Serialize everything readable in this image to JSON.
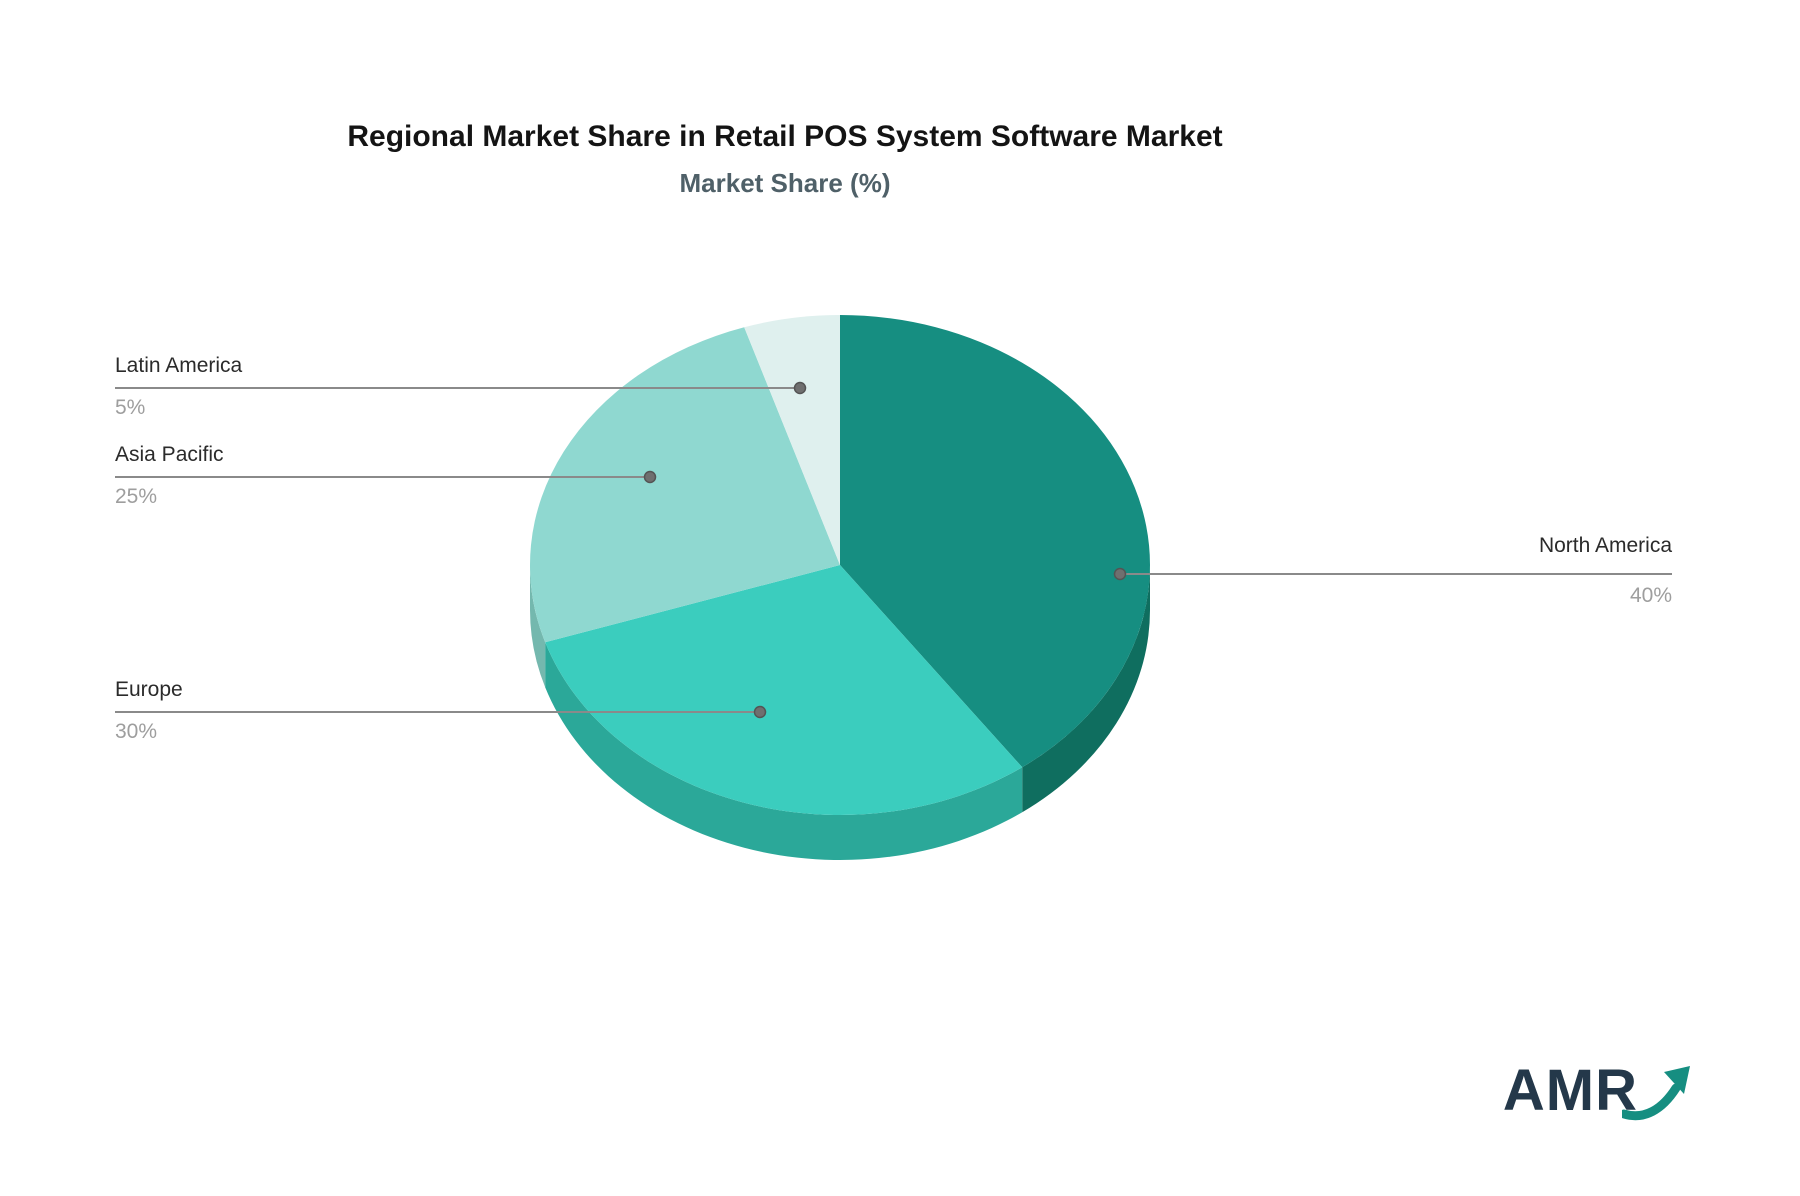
{
  "title": "Regional Market Share in Retail POS System Software Market",
  "subtitle": "Market Share (%)",
  "logo": {
    "text": "AMR",
    "arrow_color": "#168E81",
    "text_color": "#24384a"
  },
  "chart_data": {
    "type": "pie",
    "style": "3d",
    "title": "Regional Market Share in Retail POS System Software Market",
    "subtitle": "Market Share (%)",
    "unit": "%",
    "direction": "clockwise",
    "start_angle_deg": 0,
    "slices": [
      {
        "label": "North America",
        "value": 40,
        "display": "40%",
        "color": "#168E81",
        "side_color": "#0F6E5F"
      },
      {
        "label": "Europe",
        "value": 30,
        "display": "30%",
        "color": "#3BCDBE",
        "side_color": "#2BA899"
      },
      {
        "label": "Asia Pacific",
        "value": 25,
        "display": "25%",
        "color": "#8FD8D0",
        "side_color": "#74B8AE"
      },
      {
        "label": "Latin America",
        "value": 5,
        "display": "5%",
        "color": "#DFF0EE",
        "side_color": "#C5DEDA"
      }
    ],
    "legend_position": "none",
    "leader_line_color": "#8a8a8a",
    "leader_dot_color": "#6f6f6f",
    "label_text_color": "#2b2b2b",
    "value_text_color": "#9e9e9e"
  }
}
